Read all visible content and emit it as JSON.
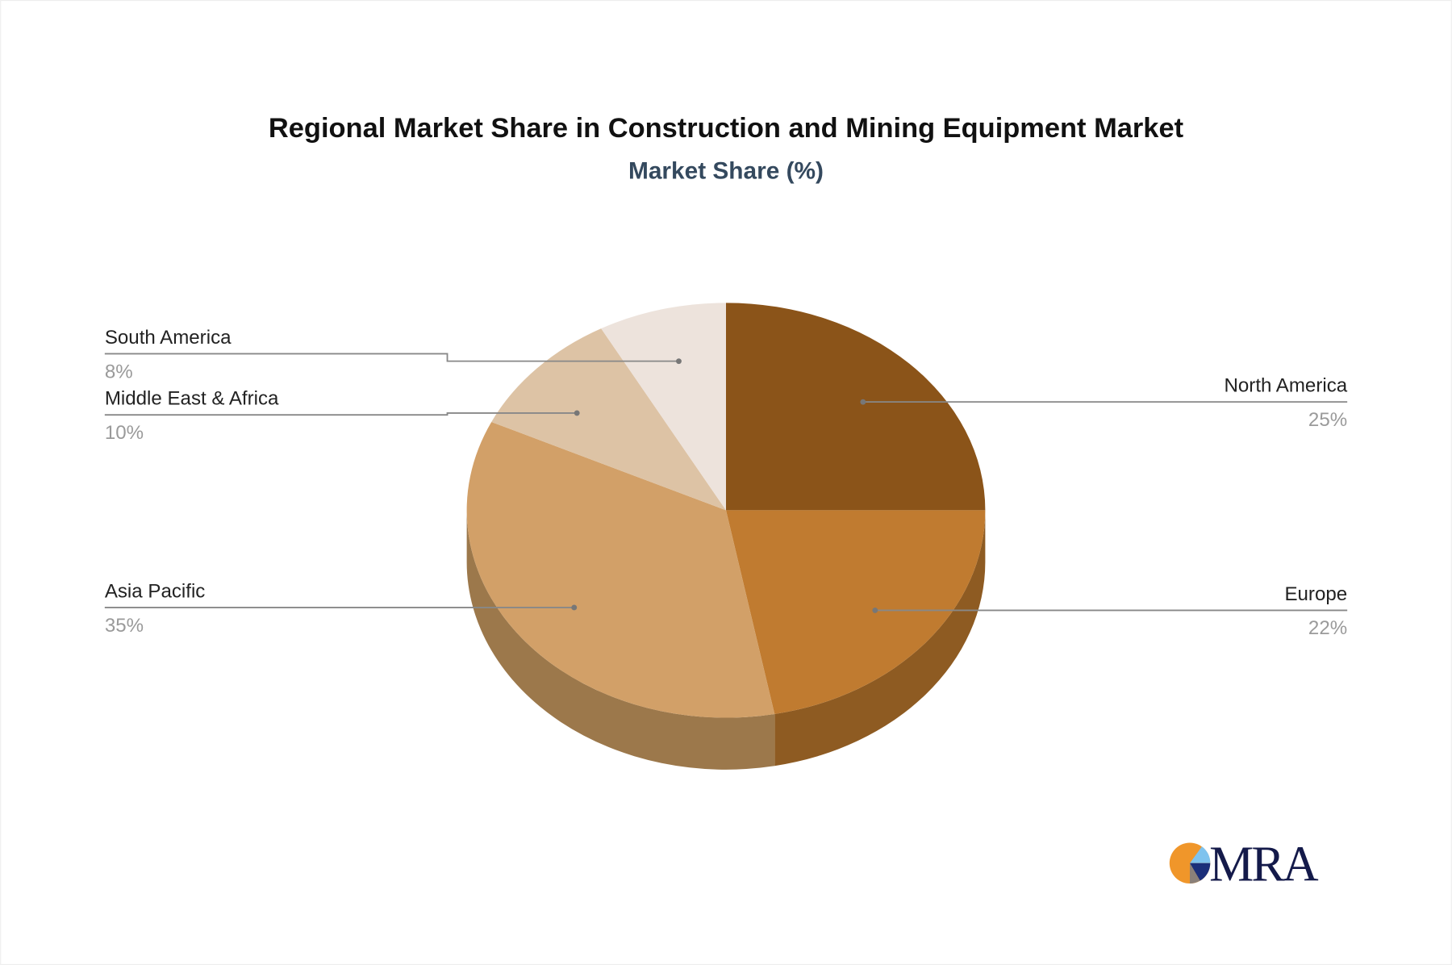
{
  "chart_data": {
    "type": "pie",
    "title": "Regional Market Share in Construction and Mining Equipment Market",
    "subtitle": "Market Share (%)",
    "three_d": true,
    "start_angle": "top, clockwise",
    "slices": [
      {
        "label": "North America",
        "value": 25,
        "display": "25%",
        "color": "#8B5419",
        "side_color": "#6E4214"
      },
      {
        "label": "Europe",
        "value": 22,
        "display": "22%",
        "color": "#C07B30",
        "side_color": "#8E5B22"
      },
      {
        "label": "Asia Pacific",
        "value": 35,
        "display": "35%",
        "color": "#D2A068",
        "side_color": "#9C784B"
      },
      {
        "label": "Middle East & Africa",
        "value": 10,
        "display": "10%",
        "color": "#DDC3A5",
        "side_color": "#A89378"
      },
      {
        "label": "South America",
        "value": 8,
        "display": "8%",
        "color": "#EDE3DC",
        "side_color": "#B5ADA7"
      }
    ]
  },
  "logo": {
    "text": "MRA",
    "colors": [
      "#F0962A",
      "#7FC3EE",
      "#1B2F7A",
      "#8A8079"
    ],
    "text_color": "#141A4A"
  }
}
